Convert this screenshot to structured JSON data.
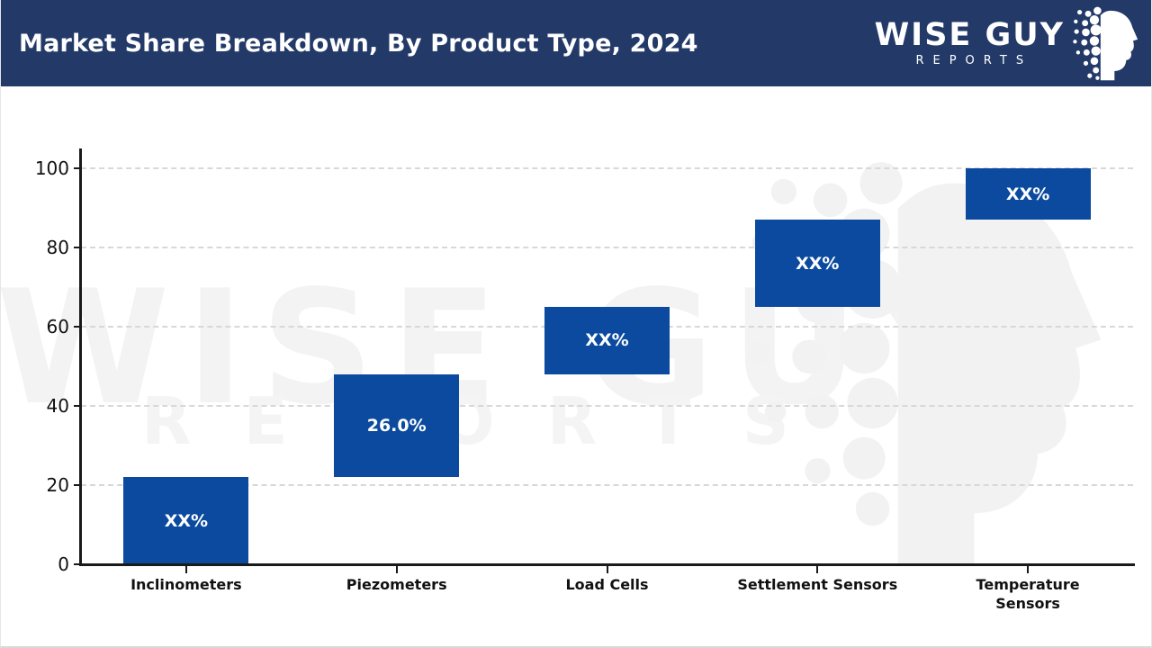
{
  "header": {
    "title": "Market Share Breakdown, By Product Type, 2024",
    "bg_color": "#233a69",
    "logo": {
      "line1": "WISE GUY",
      "line2": "REPORTS",
      "icon": "dotted-head-profile"
    }
  },
  "watermark": {
    "line1": "WISE GUY",
    "line2": "REPORTS",
    "icon": "dotted-head-profile"
  },
  "chart_data": {
    "type": "bar",
    "subtype": "waterfall",
    "title": "Market Share Breakdown, By Product Type, 2024",
    "categories": [
      "Inclinometers",
      "Piezometers",
      "Load Cells",
      "Settlement Sensors",
      "Temperature Sensors"
    ],
    "segments": [
      {
        "category": "Inclinometers",
        "start": 0,
        "end": 22,
        "value": 22,
        "label": "XX%"
      },
      {
        "category": "Piezometers",
        "start": 22,
        "end": 48,
        "value": 26,
        "label": "26.0%"
      },
      {
        "category": "Load Cells",
        "start": 48,
        "end": 65,
        "value": 17,
        "label": "XX%"
      },
      {
        "category": "Settlement Sensors",
        "start": 65,
        "end": 87,
        "value": 22,
        "label": "XX%"
      },
      {
        "category": "Temperature Sensors",
        "start": 87,
        "end": 100,
        "value": 13,
        "label": "XX%"
      }
    ],
    "yticks": [
      0,
      20,
      40,
      60,
      80,
      100
    ],
    "ylim": [
      0,
      105
    ],
    "xlabel": "",
    "ylabel": "",
    "bar_color": "#0b4a9e",
    "grid": true,
    "grid_style": "dashed",
    "legend": "none"
  }
}
